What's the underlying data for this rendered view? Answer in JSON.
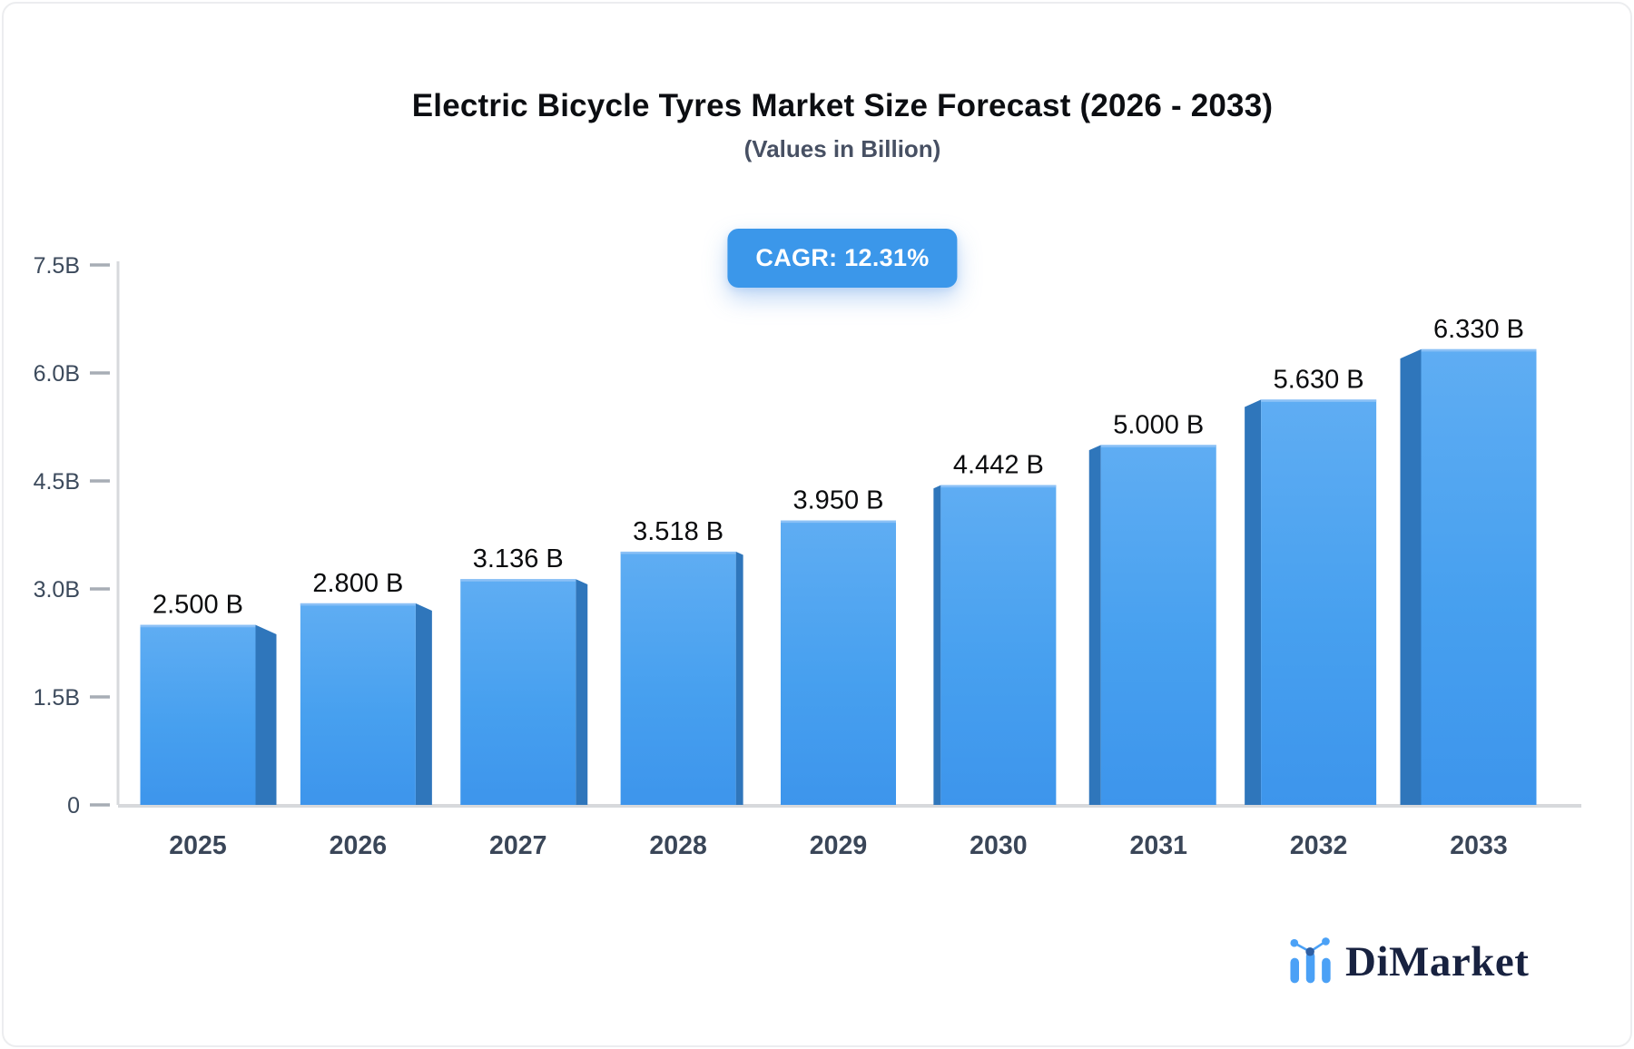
{
  "header": {
    "title": "Electric Bicycle Tyres Market Size Forecast (2026 - 2033)",
    "subtitle": "(Values in Billion)",
    "cagr_badge": "CAGR: 12.31%"
  },
  "chart_data": {
    "type": "bar",
    "title": "Electric Bicycle Tyres Market Size Forecast (2026 - 2033)",
    "subtitle": "(Values in Billion)",
    "annotation": "CAGR: 12.31%",
    "categories": [
      "2025",
      "2026",
      "2027",
      "2028",
      "2029",
      "2030",
      "2031",
      "2032",
      "2033"
    ],
    "values": [
      2.5,
      2.8,
      3.136,
      3.518,
      3.95,
      4.442,
      5.0,
      5.63,
      6.33
    ],
    "value_labels": [
      "2.500 B",
      "2.800 B",
      "3.136 B",
      "3.518 B",
      "3.950 B",
      "4.442 B",
      "5.000 B",
      "5.630 B",
      "6.330 B"
    ],
    "xlabel": "",
    "ylabel": "",
    "ylim": [
      0,
      7.5
    ],
    "yticks": [
      {
        "value": 0,
        "label": "0"
      },
      {
        "value": 1.5,
        "label": "1.5B"
      },
      {
        "value": 3,
        "label": "3.0B"
      },
      {
        "value": 4.5,
        "label": "4.5B"
      },
      {
        "value": 6,
        "label": "6.0B"
      },
      {
        "value": 7.5,
        "label": "7.5B"
      }
    ],
    "grid": false,
    "legend": null,
    "style": "3d-perspective-bars",
    "colors": {
      "bar_top": "#5FADF3",
      "bar_mid": "#47A0EF",
      "bar_bottom": "#3D95EC",
      "bar_side": "#2F76BB",
      "bar_top_edge": "#8AC0F6",
      "badge_bg": "#3B97EA",
      "badge_text": "#FFFFFF",
      "axis_line": "#D7D9DC",
      "tick_dash": "#A7ADB5",
      "tick_label": "#3C4A5C",
      "category_label": "#3A4658",
      "value_label": "#0B0C0E"
    }
  },
  "footer": {
    "logo_text": "DiMarket",
    "logo_text_color": "#182240",
    "logo_icon_color": "#4BA1F6",
    "logo_icon_accent": "#2E5FA3"
  }
}
